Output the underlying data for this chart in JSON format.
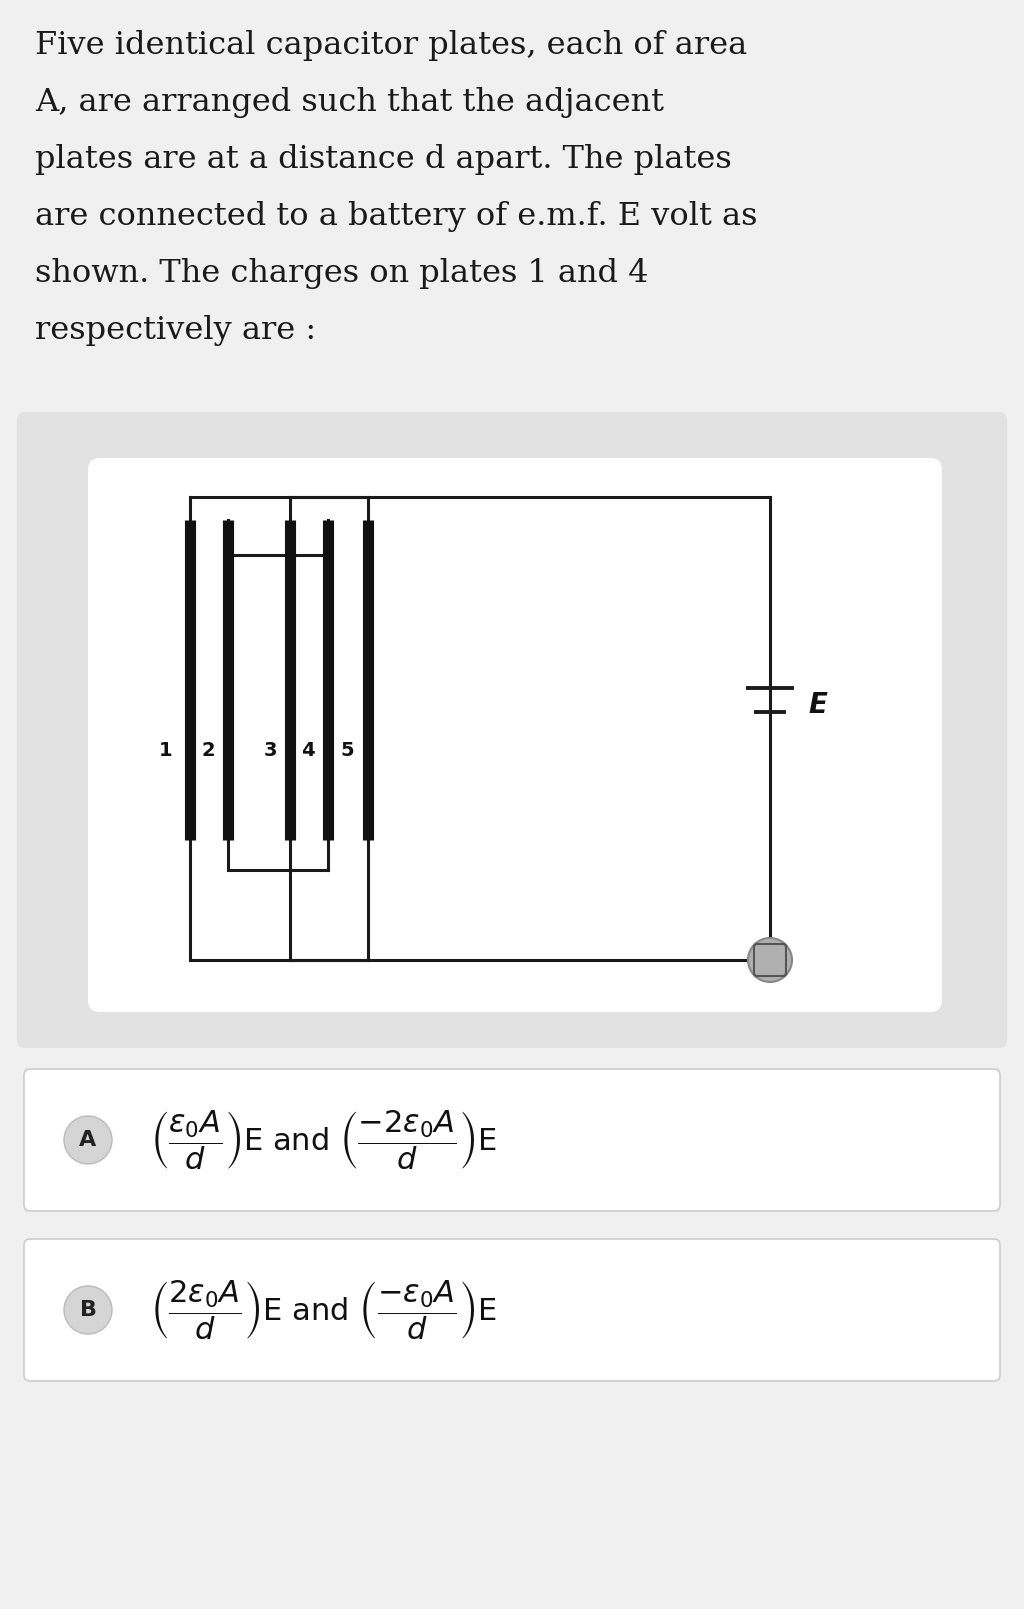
{
  "title_text": "Five identical capacitor plates, each of area\nA, are arranged such that the adjacent\nplates are at a distance d apart. The plates\nare connected to a battery of e.m.f. E volt as\nshown. The charges on plates 1 and 4\nrespectively are :",
  "title_fontsize": 23,
  "title_color": "#1a1a1a",
  "bg_color": "#f0f0f0",
  "plate_color": "#111111",
  "wire_color": "#1a1a1a",
  "plate_labels": [
    "1",
    "2",
    "3",
    "4",
    "5"
  ],
  "option_A_text": "$\\left(\\dfrac{\\epsilon_0 A}{d}\\right)$E and $\\left(\\dfrac{-2\\epsilon_0 A}{d}\\right)$E",
  "option_B_text": "$\\left(\\dfrac{2\\epsilon_0 A}{d}\\right)$E and $\\left(\\dfrac{-\\epsilon_0 A}{d}\\right)$E"
}
